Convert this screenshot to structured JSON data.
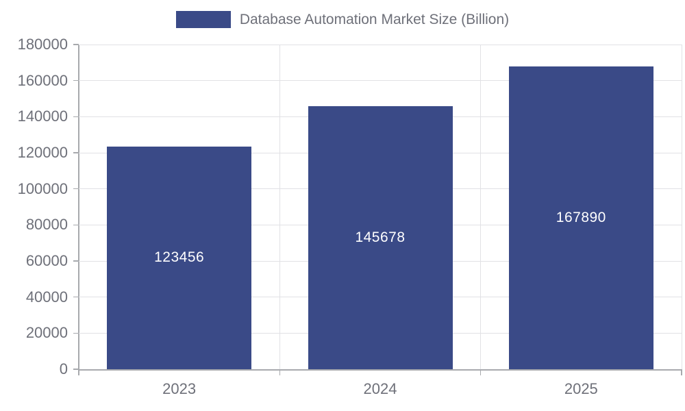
{
  "legend": {
    "label": "Database Automation Market Size (Billion)"
  },
  "chart_data": {
    "type": "bar",
    "title": "Database Automation Market Size (Billion)",
    "categories": [
      "2023",
      "2024",
      "2025"
    ],
    "values": [
      123456,
      145678,
      167890
    ],
    "bar_labels": [
      "123456",
      "145678",
      "167890"
    ],
    "xlabel": "",
    "ylabel": "",
    "ylim": [
      0,
      180000
    ],
    "yticks": [
      0,
      20000,
      40000,
      60000,
      80000,
      100000,
      120000,
      140000,
      160000,
      180000
    ],
    "ytick_labels": [
      "0",
      "20000",
      "40000",
      "60000",
      "80000",
      "100000",
      "120000",
      "140000",
      "160000",
      "180000"
    ],
    "grid": true,
    "legend_position": "top-center",
    "bar_label_position": "inside-center"
  },
  "colors": {
    "bar": "#3a4a87",
    "bar_value_label": "#ffffff",
    "gridline": "#e1e1e5",
    "axis_line": "#a7a9ad",
    "tick_label": "#6e7079",
    "legend_text": "#6e7079",
    "background": "#ffffff"
  }
}
